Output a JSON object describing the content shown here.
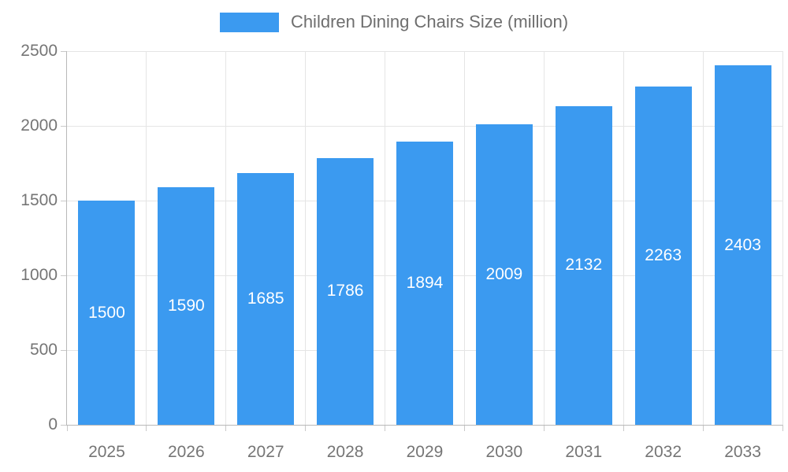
{
  "legend": {
    "label": "Children Dining Chairs Size (million)"
  },
  "chart_data": {
    "type": "bar",
    "title": "Children Dining Chairs Size (million)",
    "categories": [
      "2025",
      "2026",
      "2027",
      "2028",
      "2029",
      "2030",
      "2031",
      "2032",
      "2033"
    ],
    "series": [
      {
        "name": "Children Dining Chairs Size (million)",
        "values": [
          1500,
          1590,
          1685,
          1786,
          1894,
          2009,
          2132,
          2263,
          2403
        ]
      }
    ],
    "data_labels": [
      "1500",
      "1590",
      "1685",
      "1786",
      "1894",
      "2009",
      "2132",
      "2263",
      "2403"
    ],
    "xlabel": "",
    "ylabel": "",
    "ylim": [
      0,
      2500
    ],
    "yticks": [
      0,
      500,
      1000,
      1500,
      2000,
      2500
    ],
    "grid": true,
    "legend_position": "top-center",
    "colors": {
      "bar": "#3b9af0",
      "grid": "#e5e5e5",
      "axis": "#b9b9b9",
      "tick": "#c9c9c9",
      "tick_label": "#757575",
      "legend_text": "#6e6e6e",
      "bar_label": "#ffffff",
      "background": "#ffffff"
    }
  }
}
